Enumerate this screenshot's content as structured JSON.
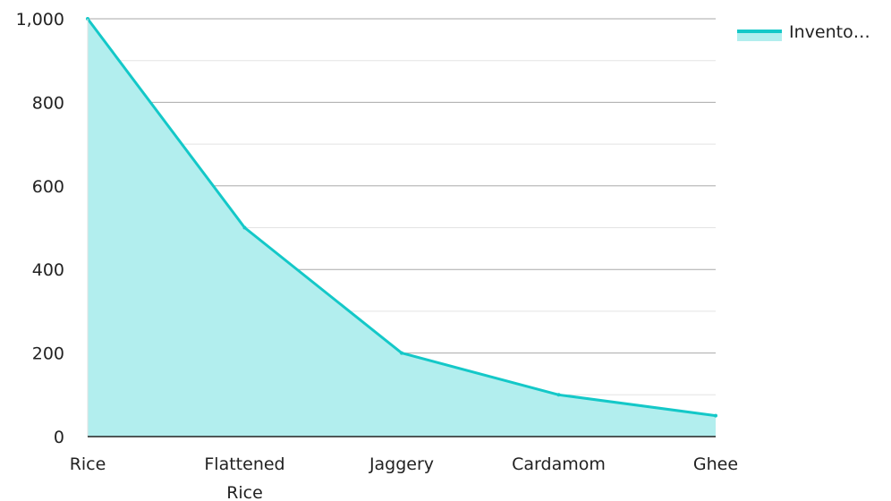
{
  "chart_data": {
    "type": "area",
    "categories": [
      "Rice",
      "Flattened Rice",
      "Jaggery",
      "Cardamom",
      "Ghee"
    ],
    "series": [
      {
        "name": "Invento…",
        "values": [
          1000,
          500,
          200,
          100,
          50
        ]
      }
    ],
    "ylim": [
      0,
      1000
    ],
    "y_ticks": [
      0,
      200,
      400,
      600,
      800,
      1000
    ],
    "y_tick_labels": [
      "0",
      "200",
      "400",
      "600",
      "800",
      "1,000"
    ],
    "title": "",
    "xlabel": "",
    "ylabel": "",
    "grid": true,
    "legend_position": "top-right",
    "colors": {
      "line": "#14c8c8",
      "fill": "#b2eeee",
      "grid_major": "#aaaaaa",
      "grid_minor": "#e3e3e3",
      "axis": "#222222"
    }
  }
}
